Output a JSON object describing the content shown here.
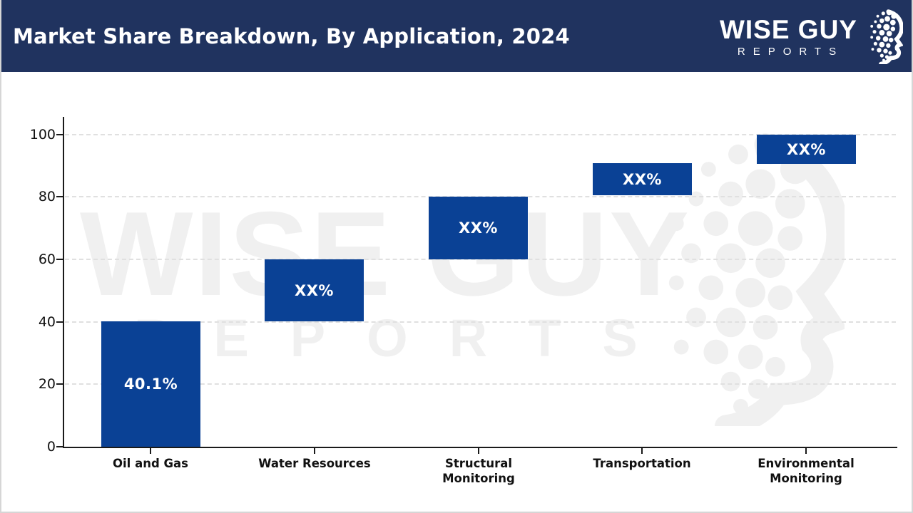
{
  "header": {
    "title": "Market Share Breakdown, By Application, 2024",
    "bg_color": "#20335f",
    "logo": {
      "line1": "WISE GUY",
      "line2": "REPORTS",
      "head_icon": "dotted-profile-head-icon"
    }
  },
  "watermark": {
    "line1": "WISE GUY",
    "line2": "REPORTS",
    "color": "#f0f0f0"
  },
  "chart_data": {
    "type": "bar",
    "subtype": "waterfall",
    "title": "Market Share Breakdown, By Application, 2024",
    "xlabel": "",
    "ylabel": "",
    "categories": [
      "Oil and Gas",
      "Water Resources",
      "Structural Monitoring",
      "Transportation",
      "Environmental Monitoring"
    ],
    "bars": [
      {
        "category": "Oil and Gas",
        "base": 0,
        "top": 40.1,
        "data_label": "40.1%"
      },
      {
        "category": "Water Resources",
        "base": 40.1,
        "top": 60,
        "data_label": "XX%"
      },
      {
        "category": "Structural Monitoring",
        "base": 60,
        "top": 80,
        "data_label": "XX%"
      },
      {
        "category": "Transportation",
        "base": 80.4,
        "top": 90.7,
        "data_label": "XX%"
      },
      {
        "category": "Environmental Monitoring",
        "base": 90.7,
        "top": 100,
        "data_label": "XX%"
      }
    ],
    "y_ticks": [
      0,
      20,
      40,
      60,
      80,
      100
    ],
    "ylim": [
      0,
      105
    ],
    "grid": "horizontal-dashed",
    "legend": "none",
    "bar_color": "#0a4195",
    "bar_label_color": "#ffffff",
    "axis_color": "#1a1a1a"
  }
}
